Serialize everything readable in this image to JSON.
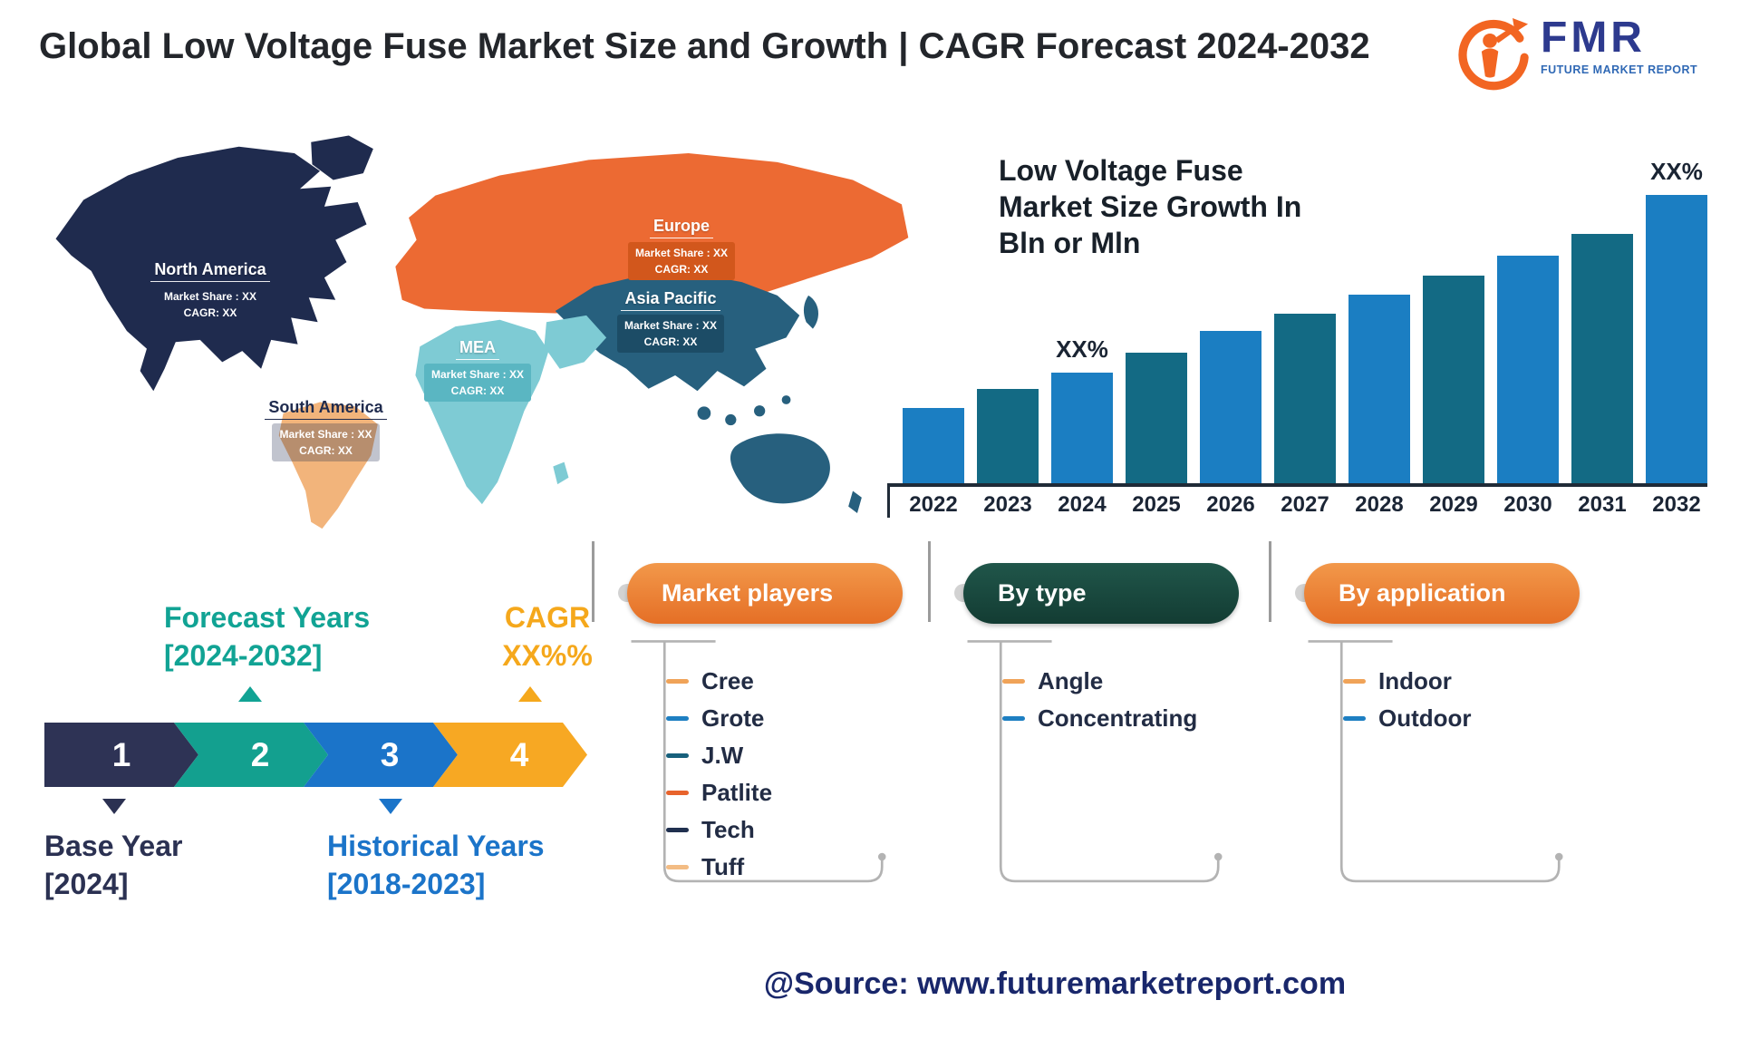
{
  "header": {
    "title": "Global Low Voltage Fuse Market Size and Growth | CAGR Forecast 2024-2032",
    "logo": {
      "abbr": "FMR",
      "subtitle": "FUTURE MARKET REPORT"
    }
  },
  "map": {
    "colors": {
      "north_america": "#1f2b4e",
      "greenland": "#1f2b4e",
      "south_america": "#f2b47b",
      "europe": "#ec6a33",
      "mea": "#7ecbd4",
      "asia_pacific": "#27607e",
      "australia": "#27607e"
    },
    "regions": [
      {
        "name": "North America",
        "share": "Market Share : XX",
        "cagr": "CAGR: XX"
      },
      {
        "name": "South America",
        "share": "Market Share : XX",
        "cagr": "CAGR: XX"
      },
      {
        "name": "Europe",
        "share": "Market Share : XX",
        "cagr": "CAGR: XX"
      },
      {
        "name": "MEA",
        "share": "Market Share : XX",
        "cagr": "CAGR: XX"
      },
      {
        "name": "Asia Pacific",
        "share": "Market Share : XX",
        "cagr": "CAGR: XX"
      }
    ]
  },
  "chart_data": {
    "type": "bar",
    "title": "Low Voltage Fuse Market Size Growth In Bln or Mln",
    "title_lines": [
      "Low Voltage Fuse",
      "Market Size Growth In",
      "Bln or Mln"
    ],
    "categories": [
      "2022",
      "2023",
      "2024",
      "2025",
      "2026",
      "2027",
      "2028",
      "2029",
      "2030",
      "2031",
      "2032"
    ],
    "values": [
      27,
      34,
      40,
      47,
      55,
      61,
      68,
      75,
      82,
      90,
      104
    ],
    "ylim": [
      0,
      110
    ],
    "xlabel": "",
    "ylabel": "",
    "grid": false,
    "legend": "none",
    "series_colors": [
      "#1b7ec2",
      "#136a84"
    ],
    "annotations": [
      {
        "category": "2024",
        "label": "XX%"
      },
      {
        "category": "2032",
        "label": "XX%"
      }
    ]
  },
  "timeline": {
    "segments": [
      {
        "number": "1",
        "color": "#2e3355"
      },
      {
        "number": "2",
        "color": "#13a08f"
      },
      {
        "number": "3",
        "color": "#1b74c9"
      },
      {
        "number": "4",
        "color": "#f7a823"
      }
    ],
    "callouts": {
      "forecast": {
        "line1": "Forecast Years",
        "line2": "[2024-2032]",
        "color": "#11a394"
      },
      "cagr": {
        "line1": "CAGR",
        "line2": "XX%%",
        "color": "#f5a81c"
      },
      "base": {
        "line1": "Base Year",
        "line2": "[2024]",
        "color": "#2b3152"
      },
      "historical": {
        "line1": "Historical Years",
        "line2": "[2018-2023]",
        "color": "#1b74c9"
      }
    }
  },
  "panels": [
    {
      "title": "Market players",
      "items": [
        {
          "label": "Cree",
          "color": "#f0a358"
        },
        {
          "label": "Grote",
          "color": "#1e7fc2"
        },
        {
          "label": "J.W",
          "color": "#17607c"
        },
        {
          "label": "Patlite",
          "color": "#e8632c"
        },
        {
          "label": "Tech",
          "color": "#20304f"
        },
        {
          "label": "Tuff",
          "color": "#f3bc84"
        }
      ]
    },
    {
      "title": "By type",
      "items": [
        {
          "label": "Angle",
          "color": "#f0a358"
        },
        {
          "label": "Concentrating",
          "color": "#1e7fc2"
        }
      ]
    },
    {
      "title": "By application",
      "items": [
        {
          "label": "Indoor",
          "color": "#f0a358"
        },
        {
          "label": "Outdoor",
          "color": "#1e7fc2"
        }
      ]
    }
  ],
  "footer": {
    "source": "@Source: www.futuremarketreport.com"
  }
}
